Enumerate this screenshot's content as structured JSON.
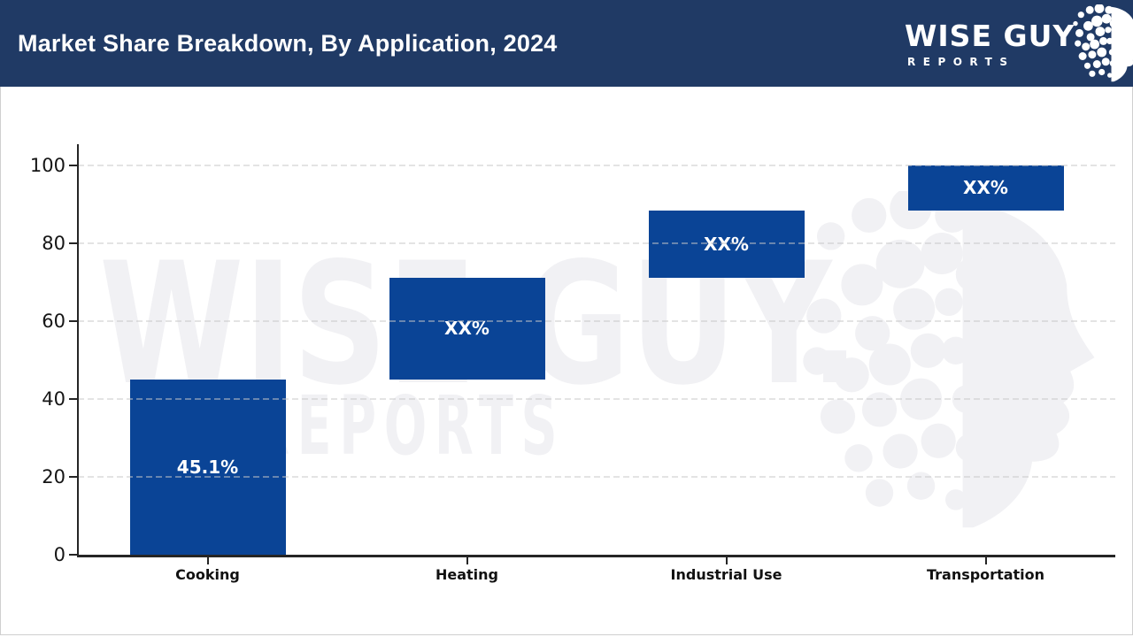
{
  "header": {
    "title": "Market Share Breakdown, By Application, 2024",
    "logo": {
      "name": "WISE GUY",
      "subtitle": "REPORTS"
    }
  },
  "watermark": {
    "line1": "WISE GUY.",
    "line2": "REPORTS"
  },
  "chart_data": {
    "type": "bar",
    "subtype": "waterfall",
    "title": "Market Share Breakdown, By Application, 2024",
    "categories": [
      "Cooking",
      "Heating",
      "Industrial Use",
      "Transportation"
    ],
    "segments": [
      {
        "category": "Cooking",
        "start": 0,
        "end": 45.1,
        "value": 45.1,
        "label": "45.1%"
      },
      {
        "category": "Heating",
        "start": 45.1,
        "end": 71.2,
        "value": 26.1,
        "label": "XX%"
      },
      {
        "category": "Industrial Use",
        "start": 71.2,
        "end": 88.5,
        "value": 17.3,
        "label": "XX%"
      },
      {
        "category": "Transportation",
        "start": 88.5,
        "end": 100,
        "value": 11.5,
        "label": "XX%"
      }
    ],
    "yticks": [
      0,
      20,
      40,
      60,
      80,
      100
    ],
    "ylim": [
      0,
      105
    ],
    "xlabel": "",
    "ylabel": "",
    "grid": "horizontal-dashed",
    "legend": "none",
    "bar_color": "#0a4496",
    "bar_label_color": "#ffffff"
  },
  "colors": {
    "header_bg": "#203a65",
    "header_text": "#ffffff",
    "bar": "#0a4496",
    "axis": "#252525",
    "tick_text": "#151515",
    "watermark": "#f1f1f4",
    "figure_border": "#cfcfcf",
    "background": "#ffffff"
  }
}
